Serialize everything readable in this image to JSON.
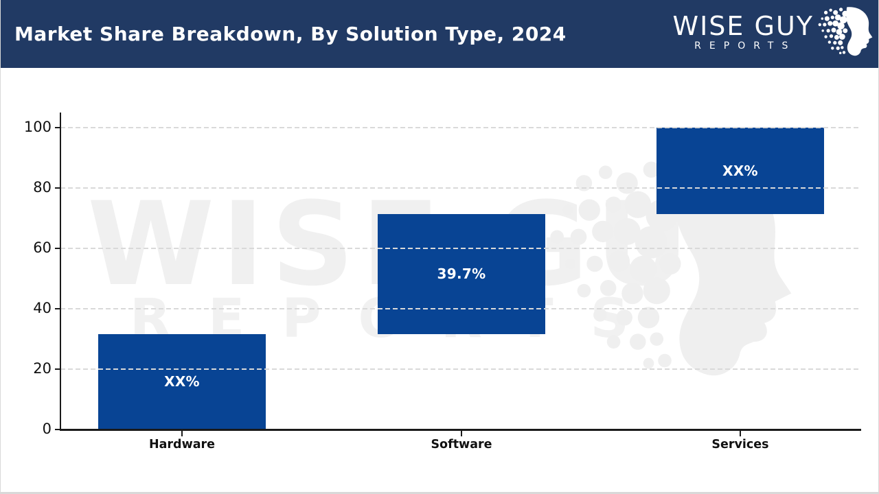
{
  "header": {
    "title": "Market Share Breakdown, By Solution Type, 2024",
    "logo": {
      "line1": "WISE GUY",
      "line2": "REPORTS"
    }
  },
  "watermark": {
    "line1": "WISE GUY",
    "line2": "REPORTS"
  },
  "chart_data": {
    "type": "bar",
    "subtype": "waterfall",
    "title": "Market Share Breakdown, By Solution Type, 2024",
    "categories": [
      "Hardware",
      "Software",
      "Services"
    ],
    "bars": [
      {
        "category": "Hardware",
        "start": 0,
        "end": 31.7,
        "label": "XX%"
      },
      {
        "category": "Software",
        "start": 31.7,
        "end": 71.4,
        "label": "39.7%"
      },
      {
        "category": "Services",
        "start": 71.4,
        "end": 100,
        "label": "XX%"
      }
    ],
    "yticks": [
      0,
      20,
      40,
      60,
      80,
      100
    ],
    "ylim": [
      0,
      105
    ],
    "xlabel": "",
    "ylabel": "",
    "grid": "dashed-horizontal",
    "legend": "none",
    "bar_color": "#084494",
    "bar_label_color": "#ffffff"
  },
  "colors": {
    "header_bg": "#213a64",
    "bar": "#084494",
    "grid": "#d9d9d9",
    "axis": "#1a1a1a",
    "watermark": "#f0f0f0"
  }
}
